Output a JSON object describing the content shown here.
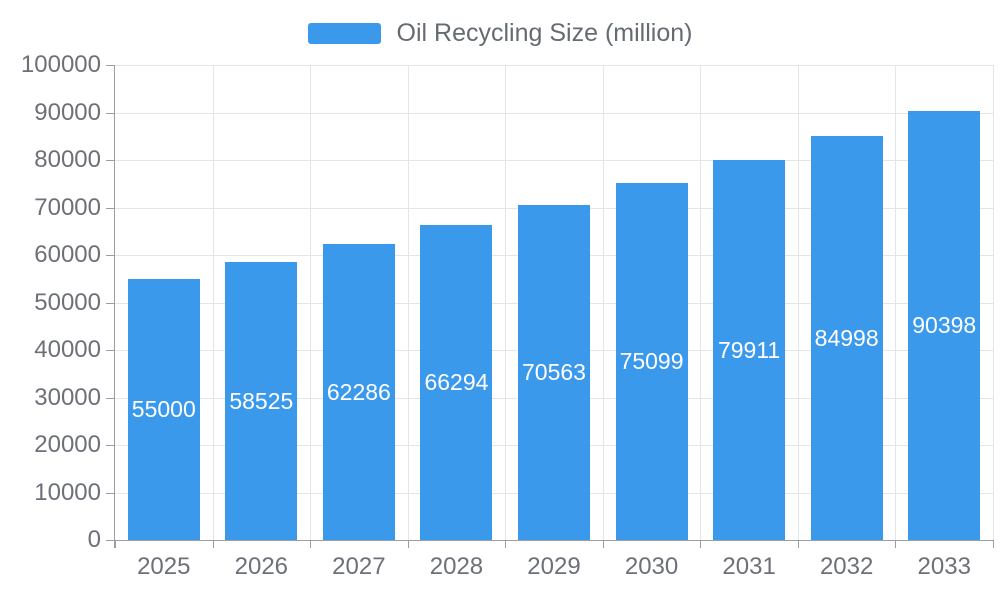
{
  "chart_data": {
    "type": "bar",
    "title": "Oil Recycling Size (million)",
    "legend": {
      "label": "Oil Recycling Size (million)",
      "position": "top-center"
    },
    "categories": [
      "2025",
      "2026",
      "2027",
      "2028",
      "2029",
      "2030",
      "2031",
      "2032",
      "2033"
    ],
    "values": [
      55000,
      58525,
      62286,
      66294,
      70563,
      75099,
      79911,
      84998,
      90398
    ],
    "xlabel": "",
    "ylabel": "",
    "ylim": [
      0,
      100000
    ],
    "ytick_step": 10000,
    "ytick_labels": [
      "0",
      "10000",
      "20000",
      "30000",
      "40000",
      "50000",
      "60000",
      "70000",
      "80000",
      "90000",
      "100000"
    ],
    "grid": true,
    "value_labels_position": "inside-center",
    "colors": {
      "bar": "#3b99ec",
      "value_label": "#ffffff",
      "axis_line": "#9a9da3",
      "axis_text": "#6e7079",
      "gridline": "#e2e5ec",
      "background": "#ffffff"
    }
  }
}
